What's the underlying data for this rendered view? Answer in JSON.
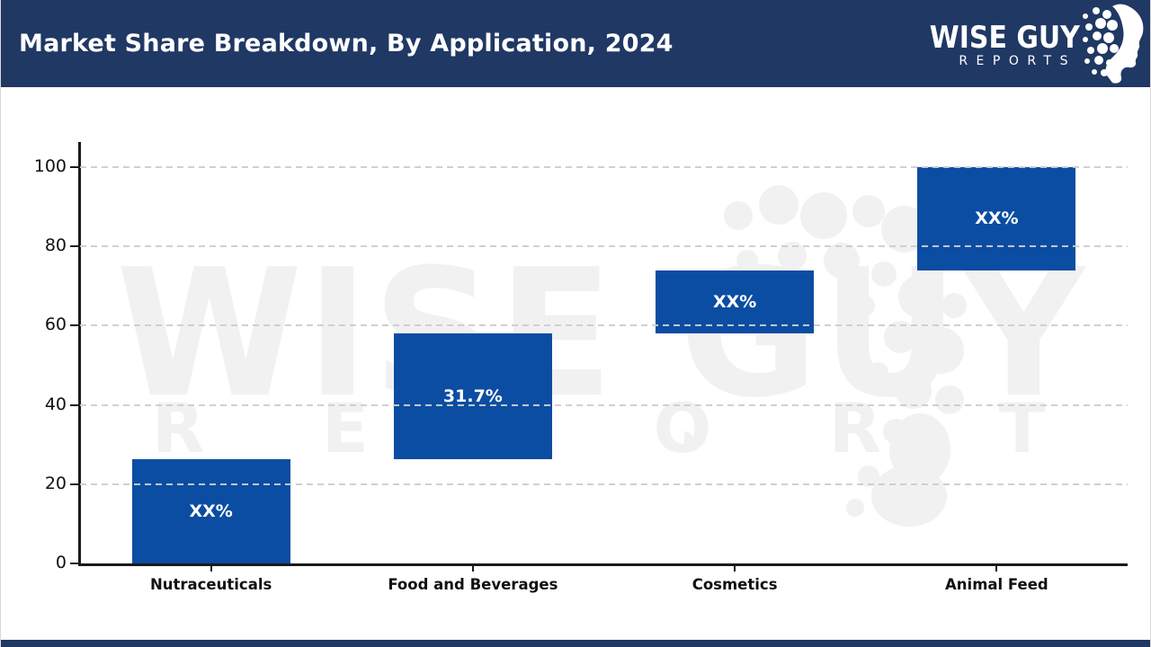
{
  "header": {
    "title": "Market Share Breakdown, By Application, 2024",
    "bg_color": "#203864",
    "logo": {
      "line1": "WISE GUY",
      "line2": "REPORTS"
    }
  },
  "watermark": {
    "line1": "WISE GUY",
    "line2": "REPORTS"
  },
  "footer": {
    "bg_color": "#203864"
  },
  "chart_data": {
    "type": "bar",
    "subtype": "waterfall",
    "title": "Market Share Breakdown, By Application, 2024",
    "categories": [
      "Nutraceuticals",
      "Food and Beverages",
      "Cosmetics",
      "Animal Feed"
    ],
    "segments": [
      {
        "category": "Nutraceuticals",
        "label": "XX%",
        "start": 0,
        "end": 26.4
      },
      {
        "category": "Food and Beverages",
        "label": "31.7%",
        "start": 26.4,
        "end": 58.1
      },
      {
        "category": "Cosmetics",
        "label": "XX%",
        "start": 58.1,
        "end": 74.0
      },
      {
        "category": "Animal Feed",
        "label": "XX%",
        "start": 74.0,
        "end": 100.0
      }
    ],
    "xlabel": "",
    "ylabel": "",
    "ylim": [
      0,
      100
    ],
    "yticks": [
      0,
      20,
      40,
      60,
      80,
      100
    ],
    "grid": "horizontal dashed, drawn over bars",
    "legend": "none",
    "bar_color": "#0b4da2",
    "value_label_color": "#ffffff"
  },
  "colors": {
    "header_bg": "#203864",
    "bar": "#0b4da2",
    "grid": "#cdcdcd",
    "axis": "#1a1a1a",
    "watermark": "#f1f1f1"
  }
}
